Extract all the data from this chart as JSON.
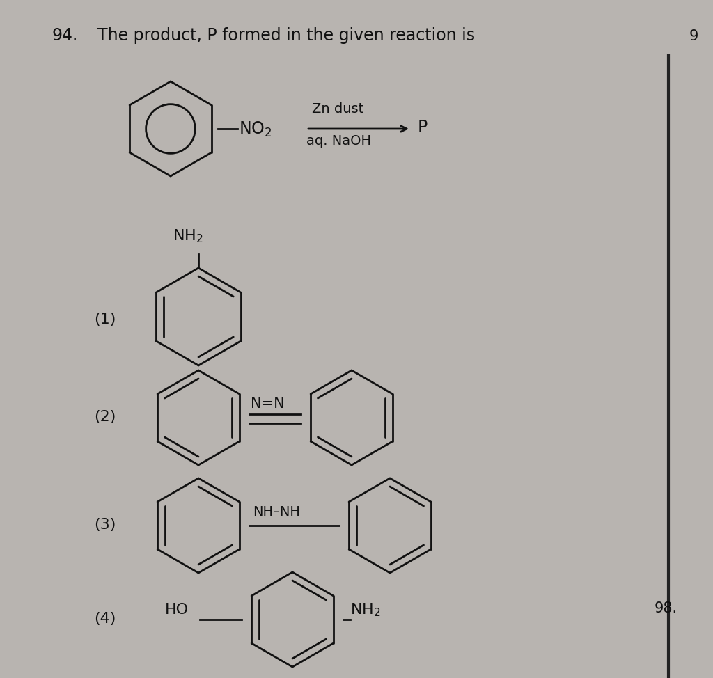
{
  "title_number": "94.",
  "title_text": "The product, P formed in the given reaction is",
  "background_color": "#b8b4b0",
  "text_color": "#111111",
  "page_number": "9",
  "page_number2": "98."
}
